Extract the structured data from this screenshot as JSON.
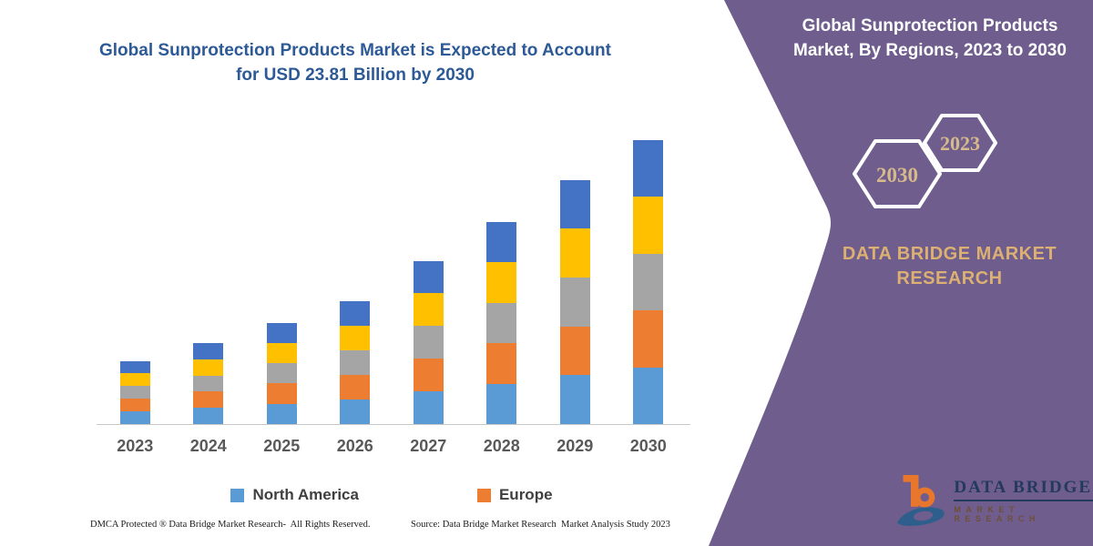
{
  "header": {
    "title_line1": "Global Sunprotection Products Market is Expected to Account",
    "title_line2": "for USD 23.81 Billion by 2030",
    "title_color": "#2d5a96"
  },
  "panel": {
    "background_color": "#6e5d8d",
    "title_line1": "Global Sunprotection Products",
    "title_line2": "Market, By Regions, 2023 to 2030",
    "hexagons": [
      {
        "label": "2030"
      },
      {
        "label": "2023"
      }
    ],
    "hexagon_text_color": "#d7ba8b",
    "brand_line1": "DATA BRIDGE MARKET",
    "brand_line2": "RESEARCH",
    "brand_color": "#dcb072"
  },
  "logo": {
    "name": "DATA BRIDGE",
    "subtitle": "MARKET RESEARCH",
    "mark_orange": "#e8762d",
    "mark_blue": "#2e5f8c"
  },
  "legend": [
    {
      "label": "North America",
      "color": "#5b9bd5"
    },
    {
      "label": "Europe",
      "color": "#ed7d31"
    }
  ],
  "footer": {
    "left": "DMCA Protected ® Data Bridge Market Research-  All Rights Reserved.",
    "right": "Source: Data Bridge Market Research  Market Analysis Study 2023"
  },
  "chart_data": {
    "type": "bar",
    "stacked": true,
    "title": "Global Sunprotection Products Market is Expected to Account for USD 23.81 Billion by 2030",
    "categories": [
      "2023",
      "2024",
      "2025",
      "2026",
      "2027",
      "2028",
      "2029",
      "2030"
    ],
    "totals_usd_billion": [
      5.3,
      6.8,
      8.5,
      10.3,
      13.7,
      17.0,
      20.5,
      23.81
    ],
    "series": [
      {
        "name": "North America",
        "color": "#5b9bd5",
        "values": [
          1.06,
          1.36,
          1.7,
          2.06,
          2.74,
          3.4,
          4.1,
          4.76
        ]
      },
      {
        "name": "Europe",
        "color": "#ed7d31",
        "values": [
          1.06,
          1.36,
          1.7,
          2.06,
          2.74,
          3.4,
          4.1,
          4.76
        ]
      },
      {
        "name": "",
        "color": "#a5a5a5",
        "values": [
          1.06,
          1.36,
          1.7,
          2.06,
          2.74,
          3.4,
          4.1,
          4.76
        ]
      },
      {
        "name": "",
        "color": "#ffc000",
        "values": [
          1.06,
          1.36,
          1.7,
          2.06,
          2.74,
          3.4,
          4.1,
          4.76
        ]
      },
      {
        "name": "",
        "color": "#4472c4",
        "values": [
          1.06,
          1.36,
          1.7,
          2.06,
          2.74,
          3.4,
          4.1,
          4.76
        ]
      }
    ],
    "xlabel": "",
    "ylabel": "",
    "ylim_usd_billion": [
      0,
      24.5
    ],
    "grid": false,
    "y_axis_shown": false,
    "legend_position": "bottom",
    "axis_line_color": "#c8c8c8",
    "tick_label_color": "#595959"
  }
}
